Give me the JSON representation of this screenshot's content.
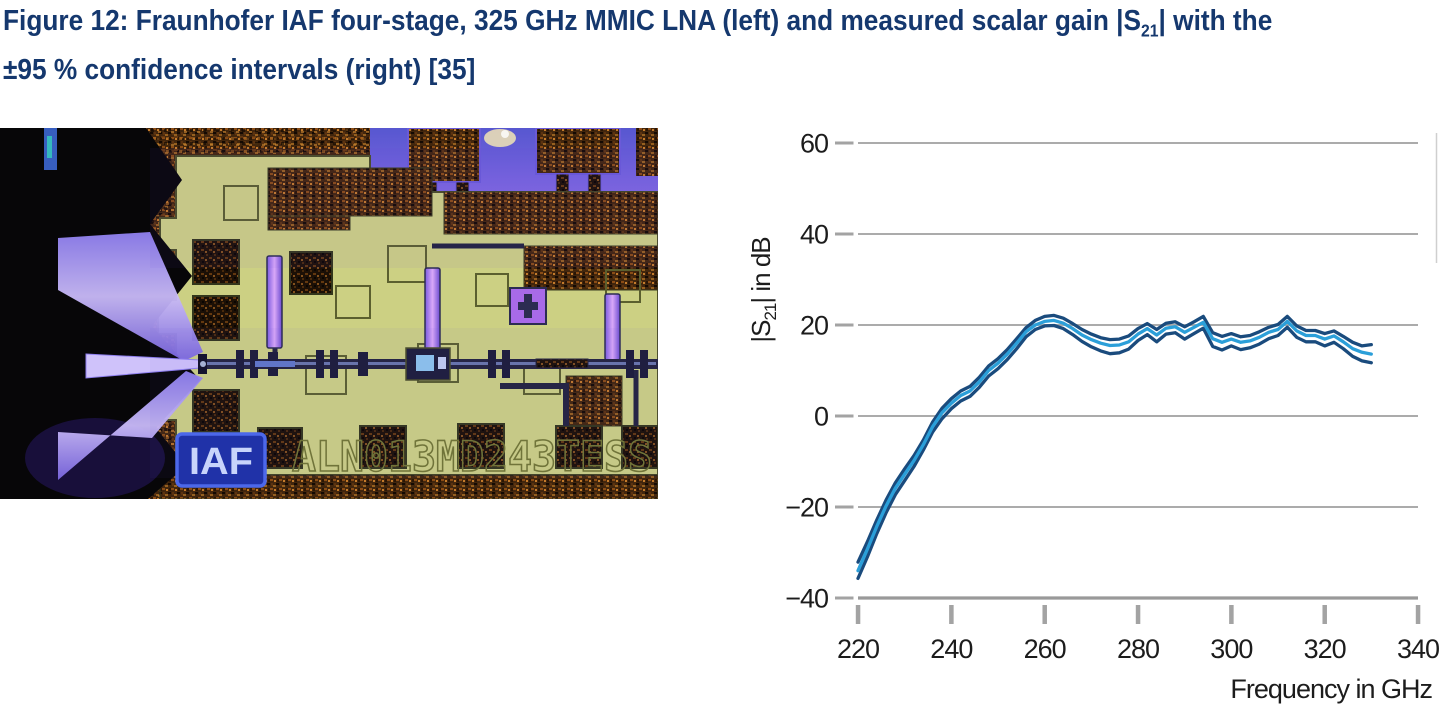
{
  "title": {
    "line1_pre": "Figure 12: Fraunhofer IAF four-stage, 325 GHz MMIC LNA (left) and measured scalar gain |S",
    "line1_sub": "21",
    "line1_post": "| with the",
    "line2": "±95 % confidence intervals (right) [35]",
    "color": "#15386e"
  },
  "chip_image": {
    "logo_text": "IAF",
    "die_id_text": "ALN013MD243TESS",
    "colors": {
      "substrate_brown": "#42260d",
      "metal_yellow": "#ccd083",
      "probe_purple": "#9a87f2",
      "logo_blue": "#4c68ea"
    }
  },
  "chart_data": {
    "type": "line",
    "title": "",
    "xlabel": "Frequency in GHz",
    "ylabel_pre": "|S",
    "ylabel_sub": "21",
    "ylabel_post": "| in dB",
    "xlim": [
      220,
      340
    ],
    "ylim": [
      -40,
      60
    ],
    "x_ticks": [
      220,
      240,
      260,
      280,
      300,
      320,
      340
    ],
    "y_ticks": [
      60,
      40,
      20,
      0,
      -20,
      -40
    ],
    "grid": "horizontal",
    "legend": "none",
    "axis_text_color": "#1c1c1c",
    "grid_color": "#ababab",
    "x": [
      220,
      222,
      224,
      226,
      228,
      230,
      232,
      234,
      236,
      238,
      240,
      242,
      244,
      246,
      248,
      250,
      252,
      254,
      256,
      258,
      260,
      262,
      264,
      266,
      268,
      270,
      272,
      274,
      276,
      278,
      280,
      282,
      284,
      286,
      288,
      290,
      292,
      294,
      296,
      298,
      300,
      302,
      304,
      306,
      308,
      310,
      312,
      314,
      316,
      318,
      320,
      322,
      324,
      326,
      328,
      330
    ],
    "series": [
      {
        "name": "upper 95% confidence bound",
        "color": "#1a4b7d",
        "y": [
          -32.1,
          -27.7,
          -22.9,
          -18.5,
          -14.7,
          -11.6,
          -8.7,
          -5.3,
          -1.3,
          1.7,
          3.8,
          5.5,
          6.5,
          8.5,
          11.0,
          12.6,
          14.6,
          17.0,
          19.4,
          21.0,
          21.9,
          22.1,
          21.5,
          20.3,
          19.0,
          18.0,
          17.2,
          16.8,
          16.9,
          17.6,
          19.2,
          20.3,
          19.0,
          20.4,
          20.7,
          19.6,
          20.7,
          21.9,
          18.3,
          17.5,
          18.1,
          17.4,
          17.7,
          18.5,
          19.5,
          20.1,
          21.9,
          19.8,
          18.8,
          18.8,
          18.1,
          18.7,
          17.5,
          16.2,
          15.4,
          15.7
        ]
      },
      {
        "name": "lower 95% confidence bound",
        "color": "#1a4b7d",
        "y": [
          -35.7,
          -31.0,
          -25.9,
          -21.3,
          -17.3,
          -14.2,
          -11.1,
          -7.5,
          -3.5,
          -0.6,
          1.6,
          3.3,
          4.3,
          6.3,
          8.8,
          10.4,
          12.4,
          14.8,
          17.4,
          19.0,
          19.8,
          19.9,
          19.2,
          17.9,
          16.4,
          15.2,
          14.3,
          13.7,
          13.9,
          14.7,
          16.6,
          17.9,
          16.3,
          18.0,
          18.3,
          16.9,
          18.1,
          19.3,
          15.3,
          14.5,
          15.4,
          14.6,
          15.0,
          15.8,
          17.0,
          17.7,
          19.5,
          17.3,
          16.3,
          16.3,
          15.4,
          16.2,
          14.8,
          13.1,
          12.1,
          11.7
        ]
      },
      {
        "name": "measured scalar gain |S21|",
        "color": "#2b9fd9",
        "y": [
          -34.0,
          -29.3,
          -24.3,
          -19.8,
          -15.9,
          -12.8,
          -9.8,
          -6.3,
          -2.3,
          0.7,
          2.8,
          4.5,
          5.5,
          7.5,
          10.0,
          11.6,
          13.6,
          16.0,
          18.5,
          20.0,
          20.8,
          21.0,
          20.4,
          19.2,
          17.8,
          16.8,
          16.0,
          15.5,
          15.6,
          16.3,
          18.0,
          19.2,
          17.8,
          19.3,
          19.6,
          18.4,
          19.5,
          20.6,
          17.0,
          16.2,
          16.9,
          16.2,
          16.5,
          17.3,
          18.4,
          19.0,
          20.8,
          18.7,
          17.7,
          17.7,
          16.9,
          17.6,
          16.3,
          14.8,
          14.0,
          13.6
        ]
      }
    ]
  }
}
